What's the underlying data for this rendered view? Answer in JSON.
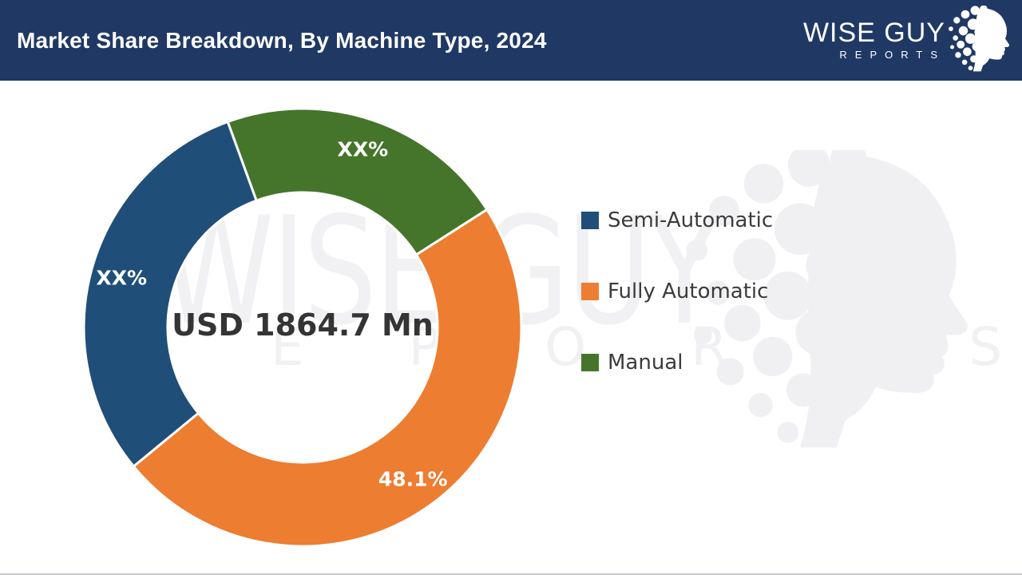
{
  "header": {
    "title": "Market Share Breakdown, By Machine Type, 2024",
    "background": "#203864",
    "logo": {
      "name": "WISE GUY",
      "sub": "REPORTS"
    }
  },
  "watermark": {
    "name": "WISE GUY",
    "sub": "R E P O R T S"
  },
  "chart_data": {
    "type": "pie",
    "subtype": "donut",
    "title": "Market Share Breakdown, By Machine Type, 2024",
    "center_label": "USD 1864.7 Mn",
    "start_angle_deg": 110,
    "direction": "counterclockwise",
    "legend_position": "right",
    "inner_radius_ratio": 0.617,
    "segments": [
      {
        "name": "Semi-Automatic",
        "label": "XX%",
        "fraction": 0.304,
        "color": "#1F4E79"
      },
      {
        "name": "Fully Automatic",
        "label": "48.1%",
        "fraction": 0.481,
        "color": "#ED7D31"
      },
      {
        "name": "Manual",
        "label": "XX%",
        "fraction": 0.215,
        "color": "#45752B"
      }
    ]
  }
}
